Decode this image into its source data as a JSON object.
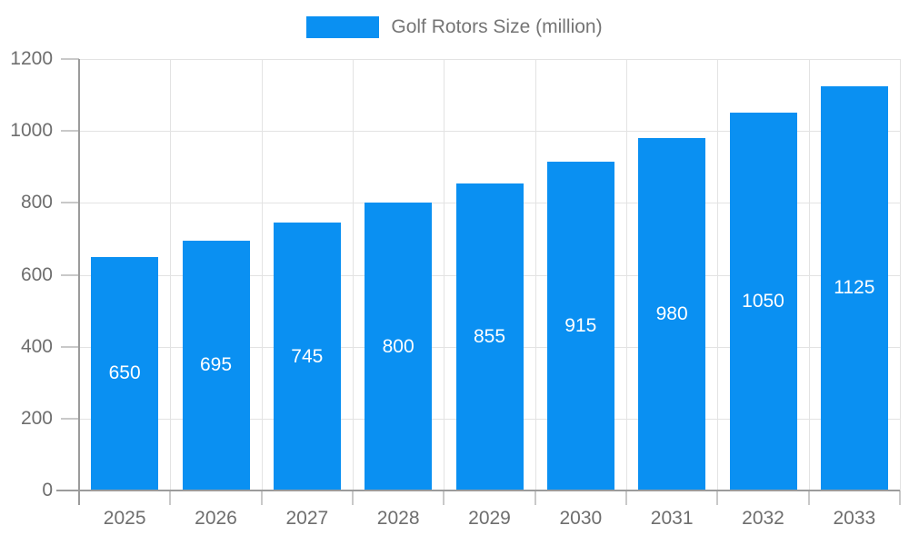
{
  "chart_data": {
    "type": "bar",
    "title": "",
    "xlabel": "",
    "ylabel": "",
    "legend": {
      "label": "Golf Rotors Size (million)",
      "position": "top"
    },
    "categories": [
      "2025",
      "2026",
      "2027",
      "2028",
      "2029",
      "2030",
      "2031",
      "2032",
      "2033"
    ],
    "values": [
      650,
      695,
      745,
      800,
      855,
      915,
      980,
      1050,
      1125
    ],
    "ylim": [
      0,
      1200
    ],
    "yticks": [
      0,
      200,
      400,
      600,
      800,
      1000,
      1200
    ],
    "grid": true,
    "colors": {
      "bar": "#0a90f2",
      "value_label": "#ffffff",
      "grid": "#e3e3e3",
      "axis": "#9b9b9b",
      "tick_mark": "#c9c9c9",
      "tick_label": "#6e6e6e",
      "legend_label": "#757575"
    }
  }
}
